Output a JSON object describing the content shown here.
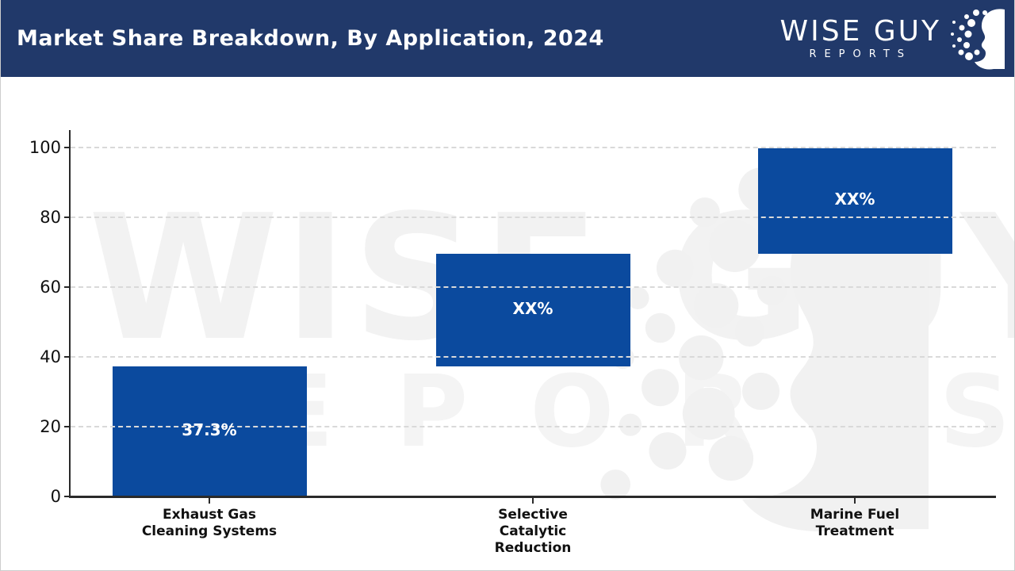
{
  "header": {
    "title": "Market Share Breakdown, By Application, 2024",
    "logo": {
      "primary": "WISE GUY",
      "secondary": "REPORTS"
    }
  },
  "watermark": {
    "primary": "WISE GUY",
    "secondary": "REPORTS"
  },
  "chart_data": {
    "type": "bar",
    "subtype": "floating-waterfall-percent",
    "title": "Market Share Breakdown, By Application, 2024",
    "categories": [
      [
        "Exhaust Gas",
        "Cleaning Systems"
      ],
      [
        "Selective",
        "Catalytic",
        "Reduction"
      ],
      [
        "Marine Fuel",
        "Treatment"
      ]
    ],
    "bars": [
      {
        "from": 0,
        "to": 37.3,
        "label": "37.3%"
      },
      {
        "from": 37.3,
        "to": 69.6,
        "label": "XX%"
      },
      {
        "from": 69.6,
        "to": 99.8,
        "label": "XX%"
      }
    ],
    "ylim": [
      0,
      100
    ],
    "yticks": [
      0,
      20,
      40,
      60,
      80,
      100
    ],
    "grid": "horizontal-dashed",
    "legend": null,
    "colors": {
      "bar": "#0b4a9e",
      "bar_label": "#ffffff",
      "axis": "#2a2a2a",
      "tick_label": "#111111",
      "gridline": "#d9d9d9",
      "header_bg": "#21396a",
      "header_text": "#ffffff",
      "watermark": "#f2f2f2"
    }
  }
}
